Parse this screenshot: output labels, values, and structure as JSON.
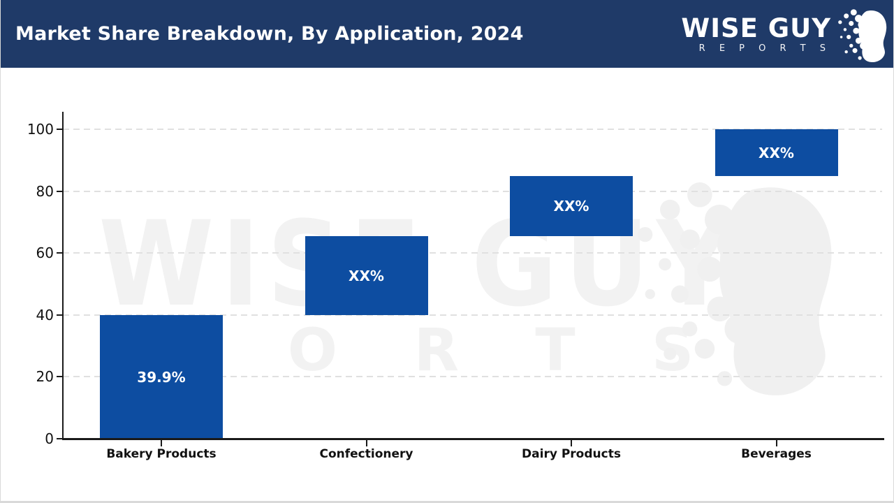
{
  "header": {
    "title": "Market Share Breakdown, By Application, 2024",
    "bg_color": "#1f3a68",
    "logo": {
      "wordmark": "WISE GUY",
      "subtext": "R E P O R T S"
    }
  },
  "watermark": {
    "line1": "WISE GUY",
    "line2": "P O R T S"
  },
  "chart_data": {
    "type": "bar",
    "subtype": "floating-waterfall",
    "title": "Market Share Breakdown, By Application, 2024",
    "categories": [
      "Bakery Products",
      "Confectionery",
      "Dairy Products",
      "Beverages"
    ],
    "series": [
      {
        "name": "Market share (%)",
        "segments": [
          {
            "category": "Bakery Products",
            "start": 0,
            "end": 39.9,
            "label": "39.9%"
          },
          {
            "category": "Confectionery",
            "start": 39.9,
            "end": 65.5,
            "label": "XX%"
          },
          {
            "category": "Dairy Products",
            "start": 65.5,
            "end": 84.8,
            "label": "XX%"
          },
          {
            "category": "Beverages",
            "start": 84.8,
            "end": 100,
            "label": "XX%"
          }
        ]
      }
    ],
    "ylim": [
      0,
      100
    ],
    "yticks": [
      0,
      20,
      40,
      60,
      80,
      100
    ],
    "xlabel": "",
    "ylabel": "",
    "grid": "horizontal-dashed",
    "legend": "none",
    "bar_color": "#0d4da1",
    "bar_label_color": "#ffffff",
    "axis_color": "#1a1a1a",
    "grid_color": "#e0e0e0"
  }
}
